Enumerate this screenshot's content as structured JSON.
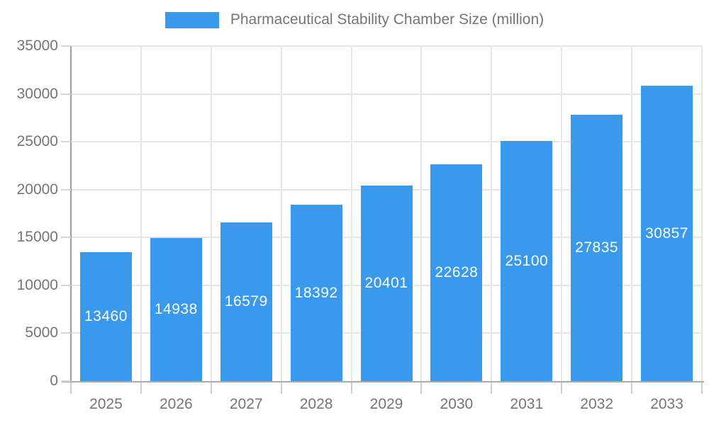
{
  "chart_data": {
    "type": "bar",
    "title": "Pharmaceutical Stability Chamber Size (million)",
    "categories": [
      "2025",
      "2026",
      "2027",
      "2028",
      "2029",
      "2030",
      "2031",
      "2032",
      "2033"
    ],
    "values": [
      13460,
      14938,
      16579,
      18392,
      20401,
      22628,
      25100,
      27835,
      30857
    ],
    "series": [
      {
        "name": "Pharmaceutical Stability Chamber Size (million)",
        "values": [
          13460,
          14938,
          16579,
          18392,
          20401,
          22628,
          25100,
          27835,
          30857
        ]
      }
    ],
    "xlabel": "",
    "ylabel": "",
    "ylim": [
      0,
      35000
    ],
    "ytick_step": 5000,
    "ytick_labels": [
      "0",
      "5000",
      "10000",
      "15000",
      "20000",
      "25000",
      "30000",
      "35000"
    ],
    "grid": true,
    "legend_position": "top",
    "value_labels": "centered-inside-bars",
    "colors": {
      "bar": "#3999ED",
      "value_label": "#ffffff",
      "axis_text": "#757575",
      "grid_line": "#e6e6e6",
      "axis_line": "#9e9e9e",
      "baseline": "#ababab",
      "tick": "#cfcfcf",
      "background": "#ffffff"
    }
  }
}
